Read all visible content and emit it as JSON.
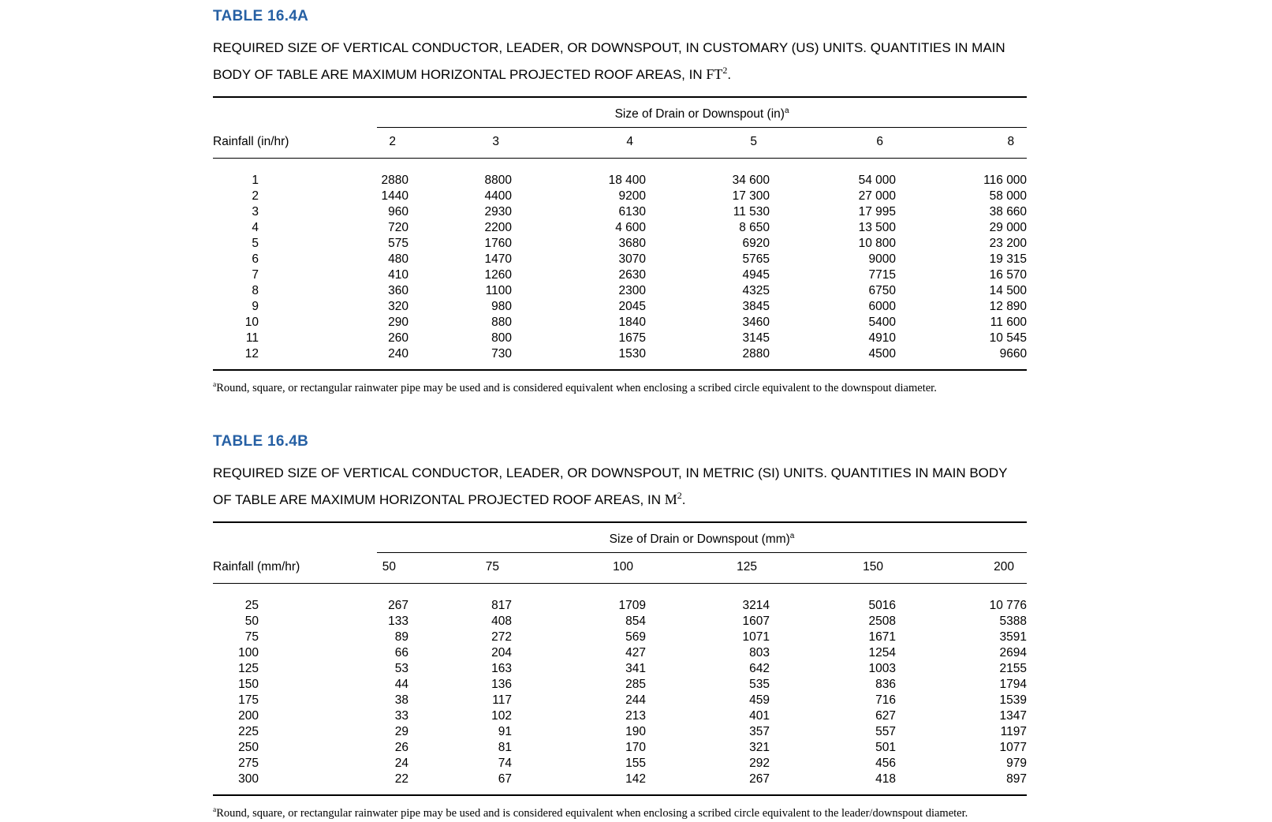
{
  "colors": {
    "accent": "#2660a4",
    "text": "#000000",
    "rule": "#000000",
    "background": "#ffffff"
  },
  "tables": [
    {
      "title": "TABLE 16.4A",
      "subtitle_before": "REQUIRED SIZE OF VERTICAL CONDUCTOR, LEADER, OR DOWNSPOUT, IN CUSTOMARY (US) UNITS. QUANTITIES IN MAIN BODY OF TABLE ARE MAXIMUM HORIZONTAL PROJECTED ROOF AREAS, IN ",
      "unit": "FT",
      "unit_exponent": "2",
      "subtitle_after": ".",
      "span_header": "Size of Drain or Downspout (in)",
      "span_header_note": "a",
      "row_axis_label": "Rainfall (in/hr)",
      "col_headers": [
        "2",
        "3",
        "4",
        "5",
        "6",
        "8"
      ],
      "rows": [
        {
          "label": "1",
          "values": [
            "2880",
            "8800",
            "18 400",
            "34 600",
            "54 000",
            "116 000"
          ]
        },
        {
          "label": "2",
          "values": [
            "1440",
            "4400",
            "9200",
            "17 300",
            "27 000",
            "58 000"
          ]
        },
        {
          "label": "3",
          "values": [
            "960",
            "2930",
            "6130",
            "11 530",
            "17 995",
            "38 660"
          ]
        },
        {
          "label": "4",
          "values": [
            "720",
            "2200",
            "4 600",
            "8 650",
            "13 500",
            "29 000"
          ]
        },
        {
          "label": "5",
          "values": [
            "575",
            "1760",
            "3680",
            "6920",
            "10 800",
            "23 200"
          ]
        },
        {
          "label": "6",
          "values": [
            "480",
            "1470",
            "3070",
            "5765",
            "9000",
            "19 315"
          ]
        },
        {
          "label": "7",
          "values": [
            "410",
            "1260",
            "2630",
            "4945",
            "7715",
            "16 570"
          ]
        },
        {
          "label": "8",
          "values": [
            "360",
            "1100",
            "2300",
            "4325",
            "6750",
            "14 500"
          ]
        },
        {
          "label": "9",
          "values": [
            "320",
            "980",
            "2045",
            "3845",
            "6000",
            "12 890"
          ]
        },
        {
          "label": "10",
          "values": [
            "290",
            "880",
            "1840",
            "3460",
            "5400",
            "11 600"
          ]
        },
        {
          "label": "11",
          "values": [
            "260",
            "800",
            "1675",
            "3145",
            "4910",
            "10 545"
          ]
        },
        {
          "label": "12",
          "values": [
            "240",
            "730",
            "1530",
            "2880",
            "4500",
            "9660"
          ]
        }
      ],
      "footnote_marker": "a",
      "footnote": "Round, square, or rectangular rainwater pipe may be used and is considered equivalent when enclosing a scribed circle equivalent to the downspout diameter."
    },
    {
      "title": "TABLE 16.4B",
      "subtitle_before": "REQUIRED SIZE OF VERTICAL CONDUCTOR, LEADER, OR DOWNSPOUT, IN METRIC (SI) UNITS. QUANTITIES IN MAIN BODY OF TABLE ARE MAXIMUM HORIZONTAL PROJECTED ROOF AREAS, IN ",
      "unit": "M",
      "unit_exponent": "2",
      "subtitle_after": ".",
      "span_header": "Size of Drain or Downspout (mm)",
      "span_header_note": "a",
      "row_axis_label": "Rainfall (mm/hr)",
      "col_headers": [
        "50",
        "75",
        "100",
        "125",
        "150",
        "200"
      ],
      "rows": [
        {
          "label": "25",
          "values": [
            "267",
            "817",
            "1709",
            "3214",
            "5016",
            "10 776"
          ]
        },
        {
          "label": "50",
          "values": [
            "133",
            "408",
            "854",
            "1607",
            "2508",
            "5388"
          ]
        },
        {
          "label": "75",
          "values": [
            "89",
            "272",
            "569",
            "1071",
            "1671",
            "3591"
          ]
        },
        {
          "label": "100",
          "values": [
            "66",
            "204",
            "427",
            "803",
            "1254",
            "2694"
          ]
        },
        {
          "label": "125",
          "values": [
            "53",
            "163",
            "341",
            "642",
            "1003",
            "2155"
          ]
        },
        {
          "label": "150",
          "values": [
            "44",
            "136",
            "285",
            "535",
            "836",
            "1794"
          ]
        },
        {
          "label": "175",
          "values": [
            "38",
            "117",
            "244",
            "459",
            "716",
            "1539"
          ]
        },
        {
          "label": "200",
          "values": [
            "33",
            "102",
            "213",
            "401",
            "627",
            "1347"
          ]
        },
        {
          "label": "225",
          "values": [
            "29",
            "91",
            "190",
            "357",
            "557",
            "1197"
          ]
        },
        {
          "label": "250",
          "values": [
            "26",
            "81",
            "170",
            "321",
            "501",
            "1077"
          ]
        },
        {
          "label": "275",
          "values": [
            "24",
            "74",
            "155",
            "292",
            "456",
            "979"
          ]
        },
        {
          "label": "300",
          "values": [
            "22",
            "67",
            "142",
            "267",
            "418",
            "897"
          ]
        }
      ],
      "footnote_marker": "a",
      "footnote": "Round, square, or rectangular rainwater pipe may be used and is considered equivalent when enclosing a scribed circle equivalent to the leader/downspout diameter."
    }
  ]
}
